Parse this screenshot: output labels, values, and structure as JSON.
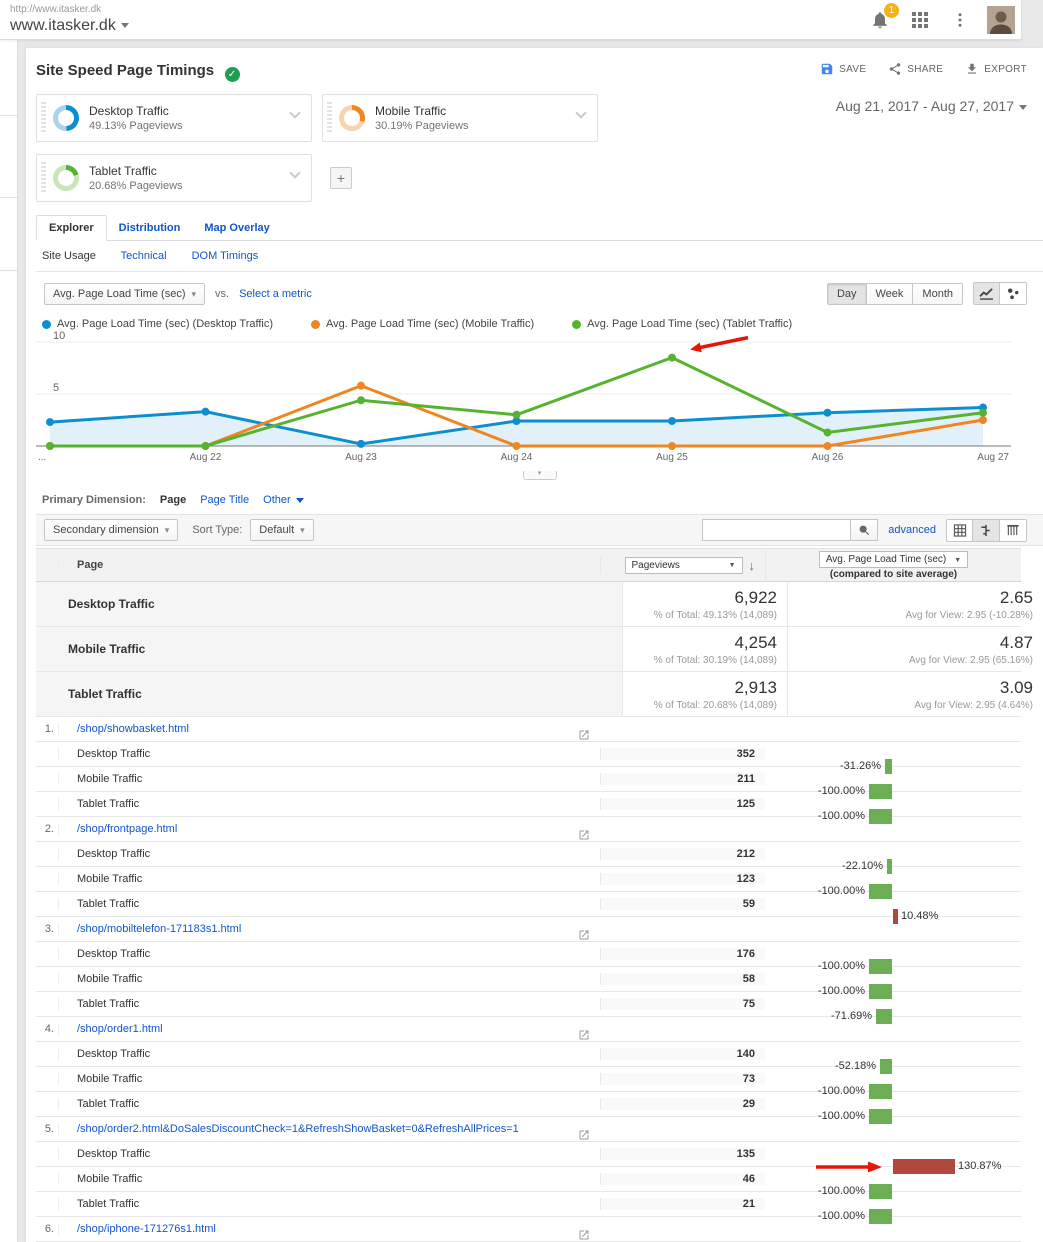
{
  "topbar": {
    "property_url": "http://www.itasker.dk",
    "property_name": "www.itasker.dk",
    "notification_count": "1"
  },
  "report": {
    "title": "Site Speed Page Timings",
    "actions": {
      "save": "SAVE",
      "share": "SHARE",
      "export": "EXPORT"
    },
    "date_range": "Aug 21, 2017 - Aug 27, 2017"
  },
  "segments": [
    {
      "name": "Desktop Traffic",
      "detail": "49.13% Pageviews",
      "pct": 49.13,
      "color": "#0d8ecf",
      "tint": "#aed2ea"
    },
    {
      "name": "Mobile Traffic",
      "detail": "30.19% Pageviews",
      "pct": 30.19,
      "color": "#ef8621",
      "tint": "#f8d3b0"
    },
    {
      "name": "Tablet Traffic",
      "detail": "20.68% Pageviews",
      "pct": 20.68,
      "color": "#57b32f",
      "tint": "#c8e6b8"
    }
  ],
  "tabs": [
    "Explorer",
    "Distribution",
    "Map Overlay"
  ],
  "subtabs": [
    "Site Usage",
    "Technical",
    "DOM Timings"
  ],
  "metric_bar": {
    "metric_select": "Avg. Page Load Time (sec)",
    "vs_label": "vs.",
    "select_metric": "Select a metric",
    "granularity": [
      "Day",
      "Week",
      "Month"
    ],
    "active_granularity": "Day"
  },
  "chart_data": {
    "type": "line",
    "x": [
      "...",
      "Aug 22",
      "Aug 23",
      "Aug 24",
      "Aug 25",
      "Aug 26",
      "Aug 27"
    ],
    "series": [
      {
        "name": "Avg. Page Load Time (sec) (Desktop Traffic)",
        "color": "#0d8ecf",
        "area": true,
        "values": [
          2.3,
          3.3,
          0.2,
          2.4,
          2.4,
          3.2,
          3.7
        ]
      },
      {
        "name": "Avg. Page Load Time (sec) (Mobile Traffic)",
        "color": "#ef8621",
        "area": false,
        "values": [
          0,
          0,
          5.8,
          0,
          0,
          0,
          2.5
        ]
      },
      {
        "name": "Avg. Page Load Time (sec) (Tablet Traffic)",
        "color": "#57b32f",
        "area": false,
        "values": [
          0,
          0,
          4.4,
          3.0,
          8.5,
          1.3,
          3.2
        ]
      }
    ],
    "ylim": [
      0,
      10
    ],
    "yticks": [
      5,
      10
    ],
    "grid": true,
    "legend_position": "top",
    "annotation": "red arrow pointing at Tablet Traffic peak on Aug 25"
  },
  "dimension_bar": {
    "label": "Primary Dimension:",
    "options": [
      "Page",
      "Page Title",
      "Other"
    ],
    "active": "Page"
  },
  "toolbar": {
    "secondary_dimension": "Secondary dimension",
    "sort_type_label": "Sort Type:",
    "sort_type_value": "Default",
    "advanced_label": "advanced"
  },
  "table": {
    "header": {
      "page": "Page",
      "pageviews": "Pageviews",
      "metric": "Avg. Page Load Time (sec)",
      "metric_note": "(compared to site average)"
    },
    "summary": [
      {
        "label": "Desktop Traffic",
        "pageviews": "6,922",
        "pageviews_note": "% of Total: 49.13% (14,089)",
        "metric": "2.65",
        "metric_note": "Avg for View: 2.95 (-10.28%)"
      },
      {
        "label": "Mobile Traffic",
        "pageviews": "4,254",
        "pageviews_note": "% of Total: 30.19% (14,089)",
        "metric": "4.87",
        "metric_note": "Avg for View: 2.95 (65.16%)"
      },
      {
        "label": "Tablet Traffic",
        "pageviews": "2,913",
        "pageviews_note": "% of Total: 20.68% (14,089)",
        "metric": "3.09",
        "metric_note": "Avg for View: 2.95 (4.64%)"
      }
    ],
    "groups": [
      {
        "rank": "1.",
        "url": "/shop/showbasket.html",
        "rows": [
          {
            "segment": "Desktop Traffic",
            "pageviews": "352",
            "pct": -31.26,
            "pct_label": "-31.26%"
          },
          {
            "segment": "Mobile Traffic",
            "pageviews": "211",
            "pct": -100,
            "pct_label": "-100.00%"
          },
          {
            "segment": "Tablet Traffic",
            "pageviews": "125",
            "pct": -100,
            "pct_label": "-100.00%"
          }
        ]
      },
      {
        "rank": "2.",
        "url": "/shop/frontpage.html",
        "rows": [
          {
            "segment": "Desktop Traffic",
            "pageviews": "212",
            "pct": -22.1,
            "pct_label": "-22.10%"
          },
          {
            "segment": "Mobile Traffic",
            "pageviews": "123",
            "pct": -100,
            "pct_label": "-100.00%"
          },
          {
            "segment": "Tablet Traffic",
            "pageviews": "59",
            "pct": 10.48,
            "pct_label": "10.48%"
          }
        ]
      },
      {
        "rank": "3.",
        "url": "/shop/mobiltelefon-171183s1.html",
        "rows": [
          {
            "segment": "Desktop Traffic",
            "pageviews": "176",
            "pct": -100,
            "pct_label": "-100.00%"
          },
          {
            "segment": "Mobile Traffic",
            "pageviews": "58",
            "pct": -100,
            "pct_label": "-100.00%"
          },
          {
            "segment": "Tablet Traffic",
            "pageviews": "75",
            "pct": -71.69,
            "pct_label": "-71.69%"
          }
        ]
      },
      {
        "rank": "4.",
        "url": "/shop/order1.html",
        "rows": [
          {
            "segment": "Desktop Traffic",
            "pageviews": "140",
            "pct": -52.18,
            "pct_label": "-52.18%"
          },
          {
            "segment": "Mobile Traffic",
            "pageviews": "73",
            "pct": -100,
            "pct_label": "-100.00%"
          },
          {
            "segment": "Tablet Traffic",
            "pageviews": "29",
            "pct": -100,
            "pct_label": "-100.00%"
          }
        ]
      },
      {
        "rank": "5.",
        "url": "/shop/order2.html&DoSalesDiscountCheck=1&RefreshShowBasket=0&RefreshAllPrices=1",
        "rows": [
          {
            "segment": "Desktop Traffic",
            "pageviews": "135",
            "pct": 130.87,
            "pct_label": "130.87%",
            "arrow": true
          },
          {
            "segment": "Mobile Traffic",
            "pageviews": "46",
            "pct": -100,
            "pct_label": "-100.00%"
          },
          {
            "segment": "Tablet Traffic",
            "pageviews": "21",
            "pct": -100,
            "pct_label": "-100.00%"
          }
        ]
      },
      {
        "rank": "6.",
        "url": "/shop/iphone-171276s1.html",
        "rows": []
      }
    ]
  },
  "colors": {
    "link": "#15c",
    "green_bar": "#6bae54",
    "red_bar": "#b0483e",
    "annotation_arrow": "#e81507",
    "desktop": "#0d8ecf",
    "mobile": "#ef8621",
    "tablet": "#57b32f"
  }
}
